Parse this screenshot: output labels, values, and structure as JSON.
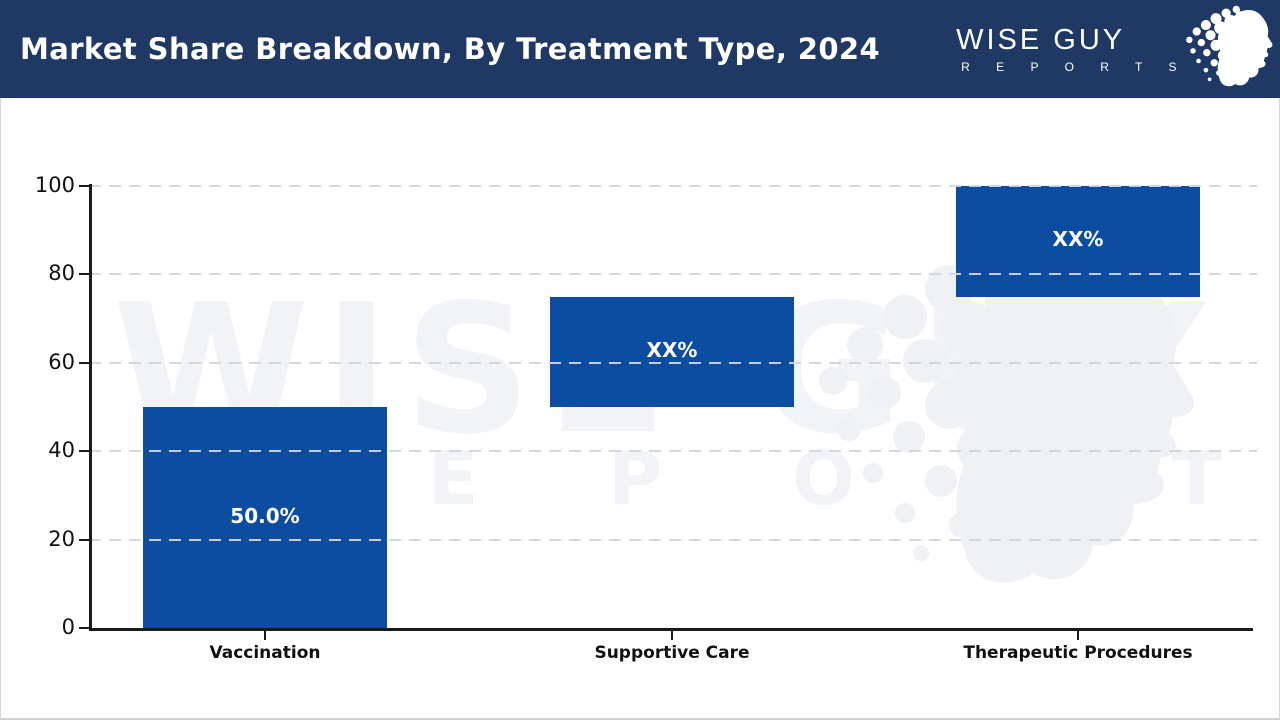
{
  "header": {
    "title": "Market Share Breakdown, By Treatment Type, 2024",
    "background_color": "#1f3864",
    "logo": {
      "line1": "WISE GUY",
      "line2": "R E P O R T S"
    }
  },
  "watermark": {
    "line1": "WISE GUY",
    "line2": "R E P O R T S"
  },
  "chart_data": {
    "type": "bar",
    "subtype": "stacked-breakdown-waterfall",
    "title": "Market Share Breakdown, By Treatment Type, 2024",
    "categories": [
      "Vaccination",
      "Supportive Care",
      "Therapeutic Procedures"
    ],
    "segments": [
      {
        "category": "Vaccination",
        "start": 0,
        "end": 50,
        "label": "50.0%"
      },
      {
        "category": "Supportive Care",
        "start": 50,
        "end": 75,
        "label": "XX%"
      },
      {
        "category": "Therapeutic Procedures",
        "start": 75,
        "end": 100,
        "label": "XX%"
      }
    ],
    "xlabel": "",
    "ylabel": "",
    "ylim": [
      0,
      100
    ],
    "yticks": [
      0,
      20,
      40,
      60,
      80,
      100
    ],
    "grid": "horizontal-dashed",
    "legend": "none",
    "bar_color": "#0c4da2",
    "bar_label_color": "#ffffff"
  }
}
